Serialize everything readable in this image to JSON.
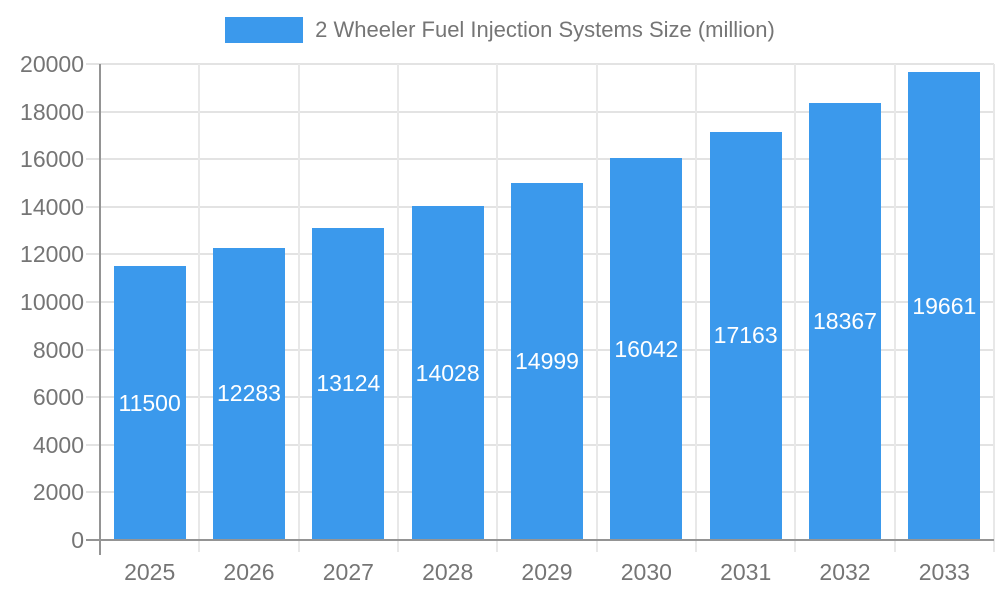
{
  "chart_data": {
    "type": "bar",
    "title": "2 Wheeler Fuel Injection Systems Size (million)",
    "legend_position": "top",
    "categories": [
      "2025",
      "2026",
      "2027",
      "2028",
      "2029",
      "2030",
      "2031",
      "2032",
      "2033"
    ],
    "series": [
      {
        "name": "2 Wheeler Fuel Injection Systems Size (million)",
        "values": [
          11500,
          12283,
          13124,
          14028,
          14999,
          16042,
          17163,
          18367,
          19661
        ]
      }
    ],
    "xlabel": "",
    "ylabel": "",
    "ylim": [
      0,
      20000
    ],
    "ytick_step": 2000,
    "grid": true,
    "value_labels_position": "inside-center",
    "colors": {
      "bar": "#3b99ec",
      "value_label": "#ffffff",
      "axis_label": "#757575",
      "gridline": "#e3e3e3",
      "band_line": "#e8e8e8",
      "axis_line": "#949494",
      "background": "#ffffff"
    }
  }
}
